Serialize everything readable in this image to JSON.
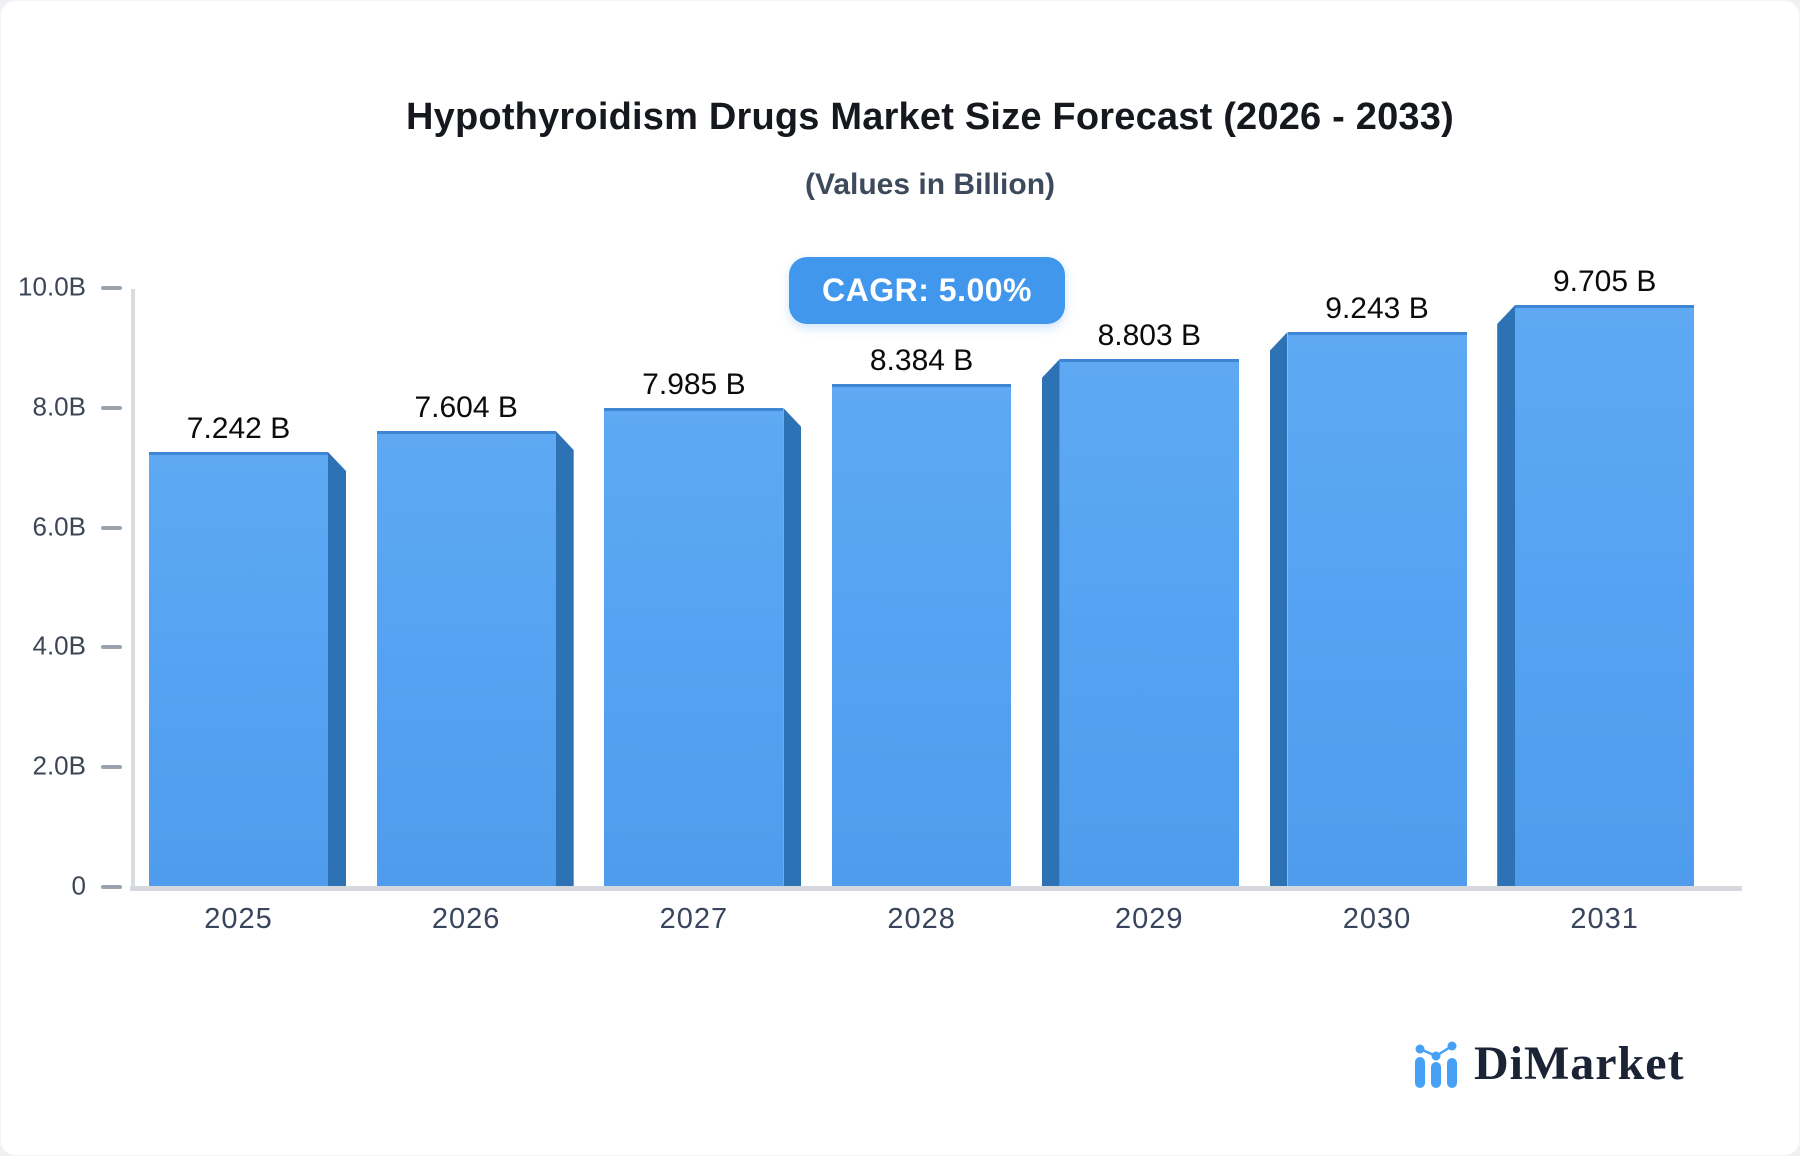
{
  "chart_data": {
    "type": "bar",
    "title": "Hypothyroidism Drugs Market Size Forecast (2026 - 2033)",
    "subtitle": "(Values in Billion)",
    "cagr_label": "CAGR: 5.00%",
    "categories": [
      "2025",
      "2026",
      "2027",
      "2028",
      "2029",
      "2030",
      "2031"
    ],
    "values": [
      7.242,
      7.604,
      7.985,
      8.384,
      8.803,
      9.243,
      9.705
    ],
    "value_labels": [
      "7.242 B",
      "7.604 B",
      "7.985 B",
      "8.384 B",
      "8.803 B",
      "9.243 B",
      "9.705 B"
    ],
    "unit": "Billion",
    "ylim": [
      0,
      10
    ],
    "yticks": [
      {
        "value": 0,
        "label": "0"
      },
      {
        "value": 2,
        "label": "2.0B"
      },
      {
        "value": 4,
        "label": "4.0B"
      },
      {
        "value": 6,
        "label": "6.0B"
      },
      {
        "value": 8,
        "label": "8.0B"
      },
      {
        "value": 10,
        "label": "10.0B"
      }
    ],
    "grid": false,
    "legend": "none",
    "colors": {
      "bar_face": "#55a3f2",
      "bar_face_top": "#3c86d3",
      "bar_edge": "#2d72b5",
      "badge_bg": "#4097eb",
      "axis_line": "#d9dce1",
      "baseline": "#d5d8dd",
      "tick": "#9ba3ad",
      "label": "#3d4654"
    }
  },
  "logo": {
    "text": "DiMarket",
    "icon": "mini-bar-line-chart-icon",
    "icon_color": "#46a0f4"
  }
}
